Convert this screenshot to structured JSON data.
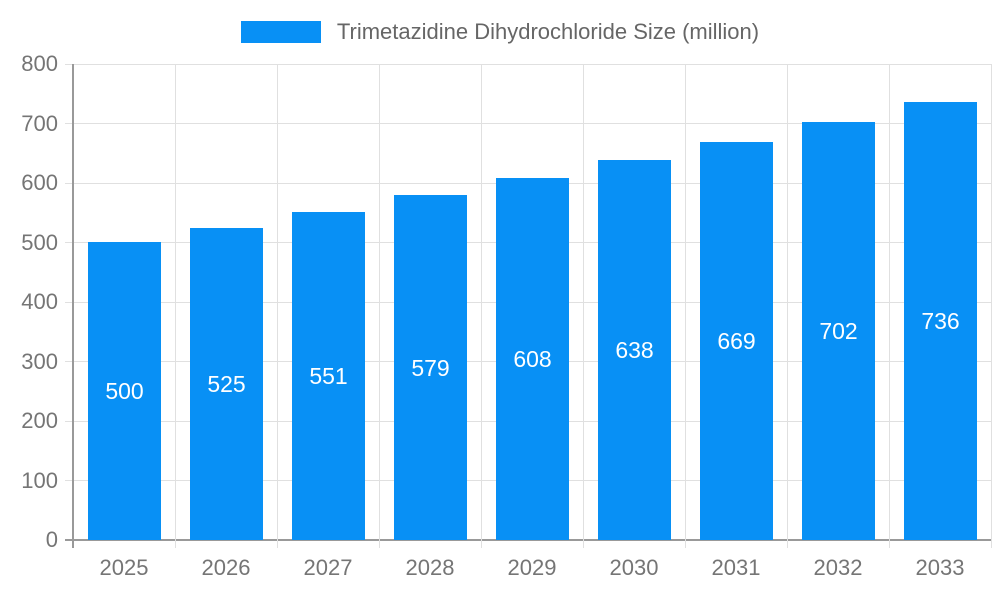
{
  "legend": {
    "label": "Trimetazidine Dihydrochloride Size (million)"
  },
  "chart_data": {
    "type": "bar",
    "categories": [
      "2025",
      "2026",
      "2027",
      "2028",
      "2029",
      "2030",
      "2031",
      "2032",
      "2033"
    ],
    "values": [
      500,
      525,
      551,
      579,
      608,
      638,
      669,
      702,
      736
    ],
    "series_name": "Trimetazidine Dihydrochloride Size (million)",
    "title": "",
    "xlabel": "",
    "ylabel": "",
    "ylim": [
      0,
      800
    ],
    "yticks": [
      "0",
      "100",
      "200",
      "300",
      "400",
      "500",
      "600",
      "700",
      "800"
    ],
    "grid": true,
    "legend_position": "top-center",
    "value_label_position": "inside-center"
  },
  "colors": {
    "bar": "#0890f5",
    "grid": "#e0e0e0",
    "axis": "#999999",
    "axis_text": "#757575",
    "legend_text": "#666666",
    "value_text": "#ffffff",
    "background": "#ffffff"
  }
}
